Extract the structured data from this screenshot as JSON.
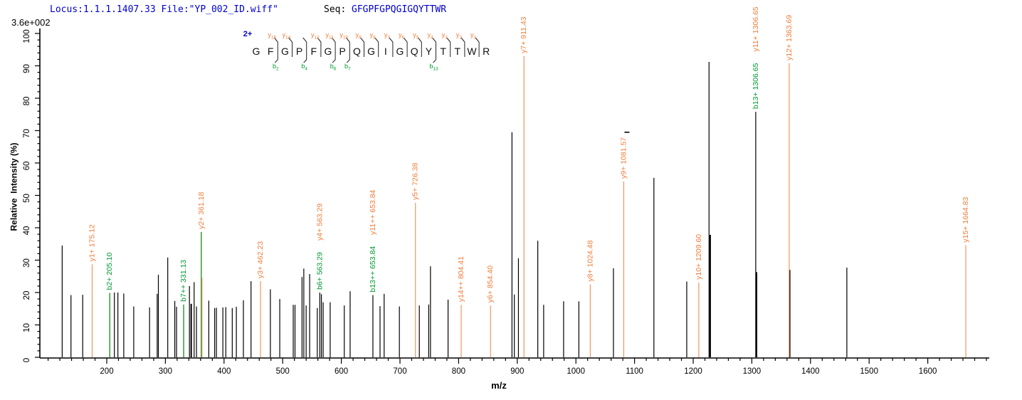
{
  "header": {
    "locus_text": "Locus:1.1.1.1407.33 File:\"YP_002_ID.wiff\"",
    "seq_label": "Seq:",
    "sequence": "GFGPFGPQGIGQYTTWR",
    "intensity_scale": "3.6e+002"
  },
  "sequence_panel": {
    "charge": "2+",
    "residues": [
      "G",
      "F",
      "G",
      "P",
      "F",
      "G",
      "P",
      "Q",
      "G",
      "I",
      "G",
      "Q",
      "Y",
      "T",
      "T",
      "W",
      "R"
    ],
    "cleavages": [
      {
        "after": 2,
        "y": "15",
        "b": "2"
      },
      {
        "after": 3,
        "y": "14"
      },
      {
        "after": 4,
        "b": "4"
      },
      {
        "after": 5,
        "y": "12"
      },
      {
        "after": 6,
        "y": "11",
        "b": "6"
      },
      {
        "after": 7,
        "y": "10",
        "b": "7"
      },
      {
        "after": 8,
        "y": "9"
      },
      {
        "after": 9,
        "y": "8"
      },
      {
        "after": 10,
        "y": "7"
      },
      {
        "after": 11,
        "y": "6"
      },
      {
        "after": 12,
        "y": "5"
      },
      {
        "after": 13,
        "y": "4",
        "b": "13"
      },
      {
        "after": 14,
        "y": "3"
      },
      {
        "after": 15,
        "y": "2"
      },
      {
        "after": 16,
        "y": "1"
      }
    ]
  },
  "colors": {
    "blue": "#0000CD",
    "orange_label": "#F07D3C",
    "orange_line": "#F0955E",
    "green_label": "#009933",
    "green_line": "#008000",
    "black": "#000000"
  },
  "chart_data": {
    "type": "bar",
    "subtype": "centroided MS/MS peptide fragmentation spectrum",
    "title": "",
    "xlabel": "m/z",
    "ylabel": "Relative  Intensity (%)",
    "xlim": [
      85,
      1702
    ],
    "ylim": [
      0,
      100
    ],
    "x_major_tick_start": 200,
    "x_major_tick_end": 1600,
    "x_major_tick_step": 100,
    "x_minor_tick_step": 20,
    "y_major_tick_step": 10,
    "y_minor_tick_step": 2,
    "grid": false,
    "base_peak_absolute_intensity": "3.6e+002",
    "peaks": [
      {
        "mz": 124,
        "i": 34.5,
        "color": "black"
      },
      {
        "mz": 139,
        "i": 19.2,
        "color": "black"
      },
      {
        "mz": 159,
        "i": 19.3,
        "color": "black"
      },
      {
        "mz": 175.12,
        "i": 28.7,
        "color": "orange",
        "labels": [
          {
            "text": "y1+ 175.12",
            "color": "orange"
          }
        ]
      },
      {
        "mz": 205.1,
        "i": 19.9,
        "color": "green",
        "labels": [
          {
            "text": "b2+ 205.10",
            "color": "green"
          }
        ]
      },
      {
        "mz": 213,
        "i": 20.0,
        "color": "black"
      },
      {
        "mz": 219,
        "i": 20.0,
        "color": "black"
      },
      {
        "mz": 229,
        "i": 19.7,
        "color": "black"
      },
      {
        "mz": 246,
        "i": 15.7,
        "color": "black"
      },
      {
        "mz": 273,
        "i": 15.4,
        "color": "black"
      },
      {
        "mz": 286,
        "i": 19.6,
        "color": "black"
      },
      {
        "mz": 288,
        "i": 25.5,
        "color": "black"
      },
      {
        "mz": 304,
        "i": 30.8,
        "color": "black"
      },
      {
        "mz": 316,
        "i": 17.4,
        "color": "black"
      },
      {
        "mz": 319,
        "i": 15.6,
        "color": "black"
      },
      {
        "mz": 331.13,
        "i": 16.3,
        "color": "green",
        "labels": [
          {
            "text": "b7++ 331.13",
            "color": "green"
          }
        ]
      },
      {
        "mz": 341,
        "i": 22.0,
        "color": "black"
      },
      {
        "mz": 344,
        "i": 16.5,
        "color": "black",
        "w": 2
      },
      {
        "mz": 349,
        "i": 23.2,
        "color": "black"
      },
      {
        "mz": 353,
        "i": 15.7,
        "color": "black"
      },
      {
        "mz": 361.18,
        "i": 38.7,
        "color": "green",
        "labels": [
          {
            "text": "y2+ 361.18",
            "color": "orange"
          }
        ]
      },
      {
        "mz": 362.4,
        "i": 24.6,
        "color": "orange"
      },
      {
        "mz": 374,
        "i": 17.5,
        "color": "black"
      },
      {
        "mz": 384,
        "i": 15.2,
        "color": "black"
      },
      {
        "mz": 387,
        "i": 15.3,
        "color": "black"
      },
      {
        "mz": 398,
        "i": 15.4,
        "color": "black"
      },
      {
        "mz": 403,
        "i": 15.5,
        "color": "black"
      },
      {
        "mz": 414,
        "i": 15.2,
        "color": "black"
      },
      {
        "mz": 421,
        "i": 15.6,
        "color": "black"
      },
      {
        "mz": 433,
        "i": 17.6,
        "color": "black"
      },
      {
        "mz": 446,
        "i": 23.5,
        "color": "black"
      },
      {
        "mz": 462.23,
        "i": 23.5,
        "color": "orange",
        "labels": [
          {
            "text": "y3+ 462.23",
            "color": "orange"
          }
        ]
      },
      {
        "mz": 479,
        "i": 21.0,
        "color": "black"
      },
      {
        "mz": 495,
        "i": 18.0,
        "color": "black"
      },
      {
        "mz": 518,
        "i": 16.2,
        "color": "black"
      },
      {
        "mz": 521,
        "i": 16.2,
        "color": "black"
      },
      {
        "mz": 533,
        "i": 24.8,
        "color": "black"
      },
      {
        "mz": 536,
        "i": 27.4,
        "color": "black"
      },
      {
        "mz": 540,
        "i": 16.0,
        "color": "black"
      },
      {
        "mz": 546,
        "i": 25.7,
        "color": "black"
      },
      {
        "mz": 559,
        "i": 15.2,
        "color": "black"
      },
      {
        "mz": 563.29,
        "i": 20.0,
        "color": "black",
        "labels": [
          {
            "text": "b6+ 563.29",
            "color": "green"
          },
          {
            "text": "y4+ 563.29",
            "color": "orange"
          }
        ]
      },
      {
        "mz": 566,
        "i": 19.5,
        "color": "black"
      },
      {
        "mz": 569,
        "i": 17.0,
        "color": "black"
      },
      {
        "mz": 581,
        "i": 17.0,
        "color": "black"
      },
      {
        "mz": 605,
        "i": 16.0,
        "color": "black"
      },
      {
        "mz": 615,
        "i": 20.4,
        "color": "black"
      },
      {
        "mz": 653.84,
        "i": 19.2,
        "color": "black",
        "labels": [
          {
            "text": "b13++ 653.84",
            "color": "green"
          },
          {
            "text": "y11++ 653.84",
            "color": "orange"
          }
        ]
      },
      {
        "mz": 666,
        "i": 15.8,
        "color": "black"
      },
      {
        "mz": 673,
        "i": 19.6,
        "color": "black"
      },
      {
        "mz": 699,
        "i": 15.7,
        "color": "black"
      },
      {
        "mz": 726.38,
        "i": 47.7,
        "color": "orange",
        "labels": [
          {
            "text": "y5+ 726.38",
            "color": "orange"
          }
        ]
      },
      {
        "mz": 733,
        "i": 16.0,
        "color": "black"
      },
      {
        "mz": 749,
        "i": 16.3,
        "color": "black"
      },
      {
        "mz": 752,
        "i": 28.1,
        "color": "black"
      },
      {
        "mz": 782,
        "i": 17.8,
        "color": "black"
      },
      {
        "mz": 804.41,
        "i": 16.2,
        "color": "orange",
        "labels": [
          {
            "text": "y14++ 804.41",
            "color": "orange"
          }
        ]
      },
      {
        "mz": 854.4,
        "i": 16.0,
        "color": "orange",
        "labels": [
          {
            "text": "y6+ 854.40",
            "color": "orange"
          }
        ]
      },
      {
        "mz": 891,
        "i": 69.5,
        "color": "black"
      },
      {
        "mz": 895,
        "i": 19.4,
        "color": "black"
      },
      {
        "mz": 902,
        "i": 30.6,
        "color": "black"
      },
      {
        "mz": 911.43,
        "i": 93.0,
        "color": "orange",
        "labels": [
          {
            "text": "y7+ 911.43",
            "color": "orange"
          }
        ]
      },
      {
        "mz": 935,
        "i": 36.0,
        "color": "black"
      },
      {
        "mz": 945,
        "i": 16.2,
        "color": "black"
      },
      {
        "mz": 979,
        "i": 17.3,
        "color": "black"
      },
      {
        "mz": 1005,
        "i": 17.3,
        "color": "black"
      },
      {
        "mz": 1024.48,
        "i": 22.5,
        "color": "orange",
        "labels": [
          {
            "text": "y8+ 1024.48",
            "color": "orange"
          }
        ]
      },
      {
        "mz": 1064,
        "i": 27.5,
        "color": "black"
      },
      {
        "mz": 1081.57,
        "i": 54.3,
        "color": "orange",
        "labels": [
          {
            "text": "y9+ 1081.57",
            "color": "orange"
          }
        ]
      },
      {
        "mz": 1133,
        "i": 55.4,
        "color": "black"
      },
      {
        "mz": 1189,
        "i": 23.4,
        "color": "black"
      },
      {
        "mz": 1209.6,
        "i": 23.1,
        "color": "orange",
        "labels": [
          {
            "text": "y10+ 1209.60",
            "color": "orange"
          }
        ]
      },
      {
        "mz": 1227,
        "i": 91.2,
        "color": "black"
      },
      {
        "mz": 1229,
        "i": 37.8,
        "color": "black",
        "w": 2
      },
      {
        "mz": 1306.65,
        "i": 75.8,
        "color": "black",
        "labels": [
          {
            "text": "b13+ 1306.65",
            "color": "green"
          },
          {
            "text": "y11+ 1306.65",
            "color": "orange"
          }
        ]
      },
      {
        "mz": 1308,
        "i": 26.3,
        "color": "black",
        "w": 2
      },
      {
        "mz": 1363.69,
        "i": 90.8,
        "color": "orange",
        "labels": [
          {
            "text": "y12+ 1363.69",
            "color": "orange"
          }
        ]
      },
      {
        "mz": 1365,
        "i": 27.0,
        "color": "black"
      },
      {
        "mz": 1462,
        "i": 27.7,
        "color": "black"
      },
      {
        "mz": 1664.83,
        "i": 34.6,
        "color": "orange",
        "labels": [
          {
            "text": "y15+ 1664.83",
            "color": "orange"
          }
        ]
      }
    ],
    "markers": [
      {
        "type": "hdash",
        "mz": 1081.57,
        "i": 69.5
      }
    ],
    "legend": null
  }
}
